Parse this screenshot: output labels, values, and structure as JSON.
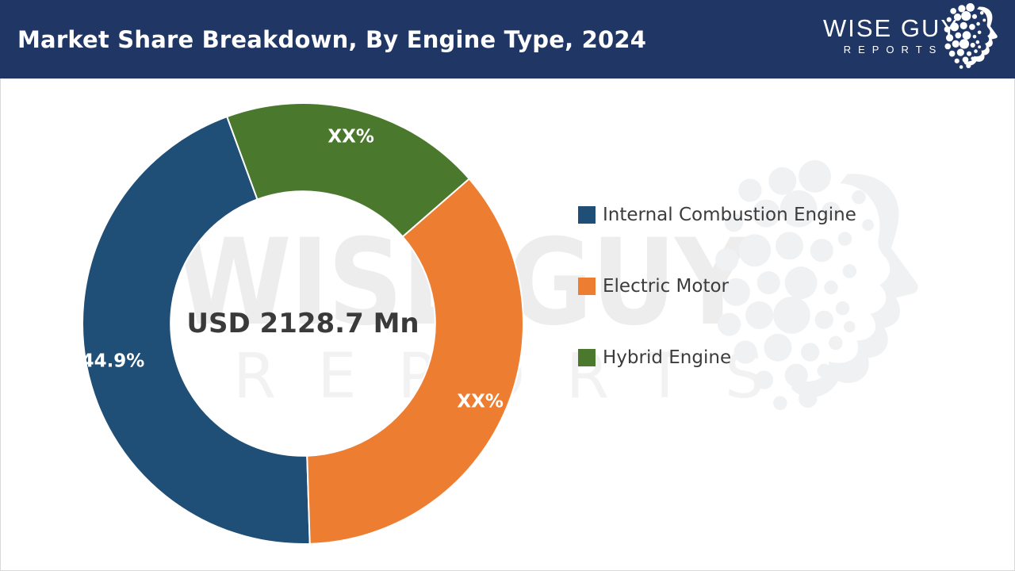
{
  "header": {
    "title": "Market Share Breakdown, By Engine Type, 2024",
    "bg_color": "#203766",
    "logo": {
      "line1": "WISE GUY",
      "line2": "REPORTS"
    }
  },
  "watermark": {
    "line1": "WISE GUY",
    "line2": "REPORTS"
  },
  "chart_data": {
    "type": "pie",
    "subtype": "donut",
    "title": "Market Share Breakdown, By Engine Type, 2024",
    "center_label": "USD 2128.7 Mn",
    "start_angle_deg": 178.2,
    "inner_radius_ratio": 0.6,
    "legend_position": "right",
    "segments": [
      {
        "label": "Internal Combustion Engine",
        "value": 44.9,
        "display": "44.9%",
        "color": "#1F4E76"
      },
      {
        "label": "Hybrid Engine",
        "value": 19.2,
        "display": "XX%",
        "color": "#4A782D"
      },
      {
        "label": "Electric Motor",
        "value": 35.9,
        "display": "XX%",
        "color": "#ED7D31"
      }
    ]
  },
  "colors": {
    "header_bg": "#203766",
    "frame_border": "#D9D9D9",
    "center_text": "#3A3A3A",
    "legend_text": "#3C3C3C",
    "watermark": "#EDEDED"
  }
}
